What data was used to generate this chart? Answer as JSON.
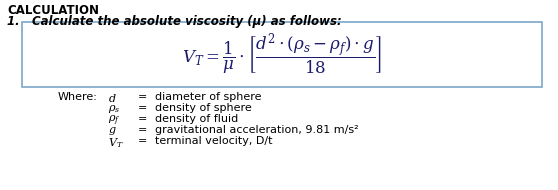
{
  "title": "CALCULATION",
  "subtitle": "1.   Calculate the absolute viscosity (μ) as follows:",
  "formula": "$V_T = \\dfrac{1}{\\mu} \\cdot \\left[\\dfrac{d^2 \\cdot (\\rho_s - \\rho_f) \\cdot g}{18}\\right]$",
  "box_edgecolor": "#7BA7C7",
  "box_facecolor": "#ffffff",
  "bg_color": "#ffffff",
  "text_color": "#1a1a6e",
  "black": "#000000",
  "where_label": "Where:",
  "variables": [
    [
      "d",
      "ρs",
      "ρf",
      "g",
      "VT"
    ],
    [
      "=",
      "=",
      "=",
      "=",
      "="
    ],
    [
      "diameter of sphere",
      "density of sphere",
      "density of fluid",
      "gravitational acceleration, 9.81 m/s²",
      "terminal velocity, D/t"
    ]
  ],
  "title_fontsize": 8.5,
  "subtitle_fontsize": 8.5,
  "formula_fontsize": 12,
  "where_fontsize": 8,
  "var_fontsize": 8
}
